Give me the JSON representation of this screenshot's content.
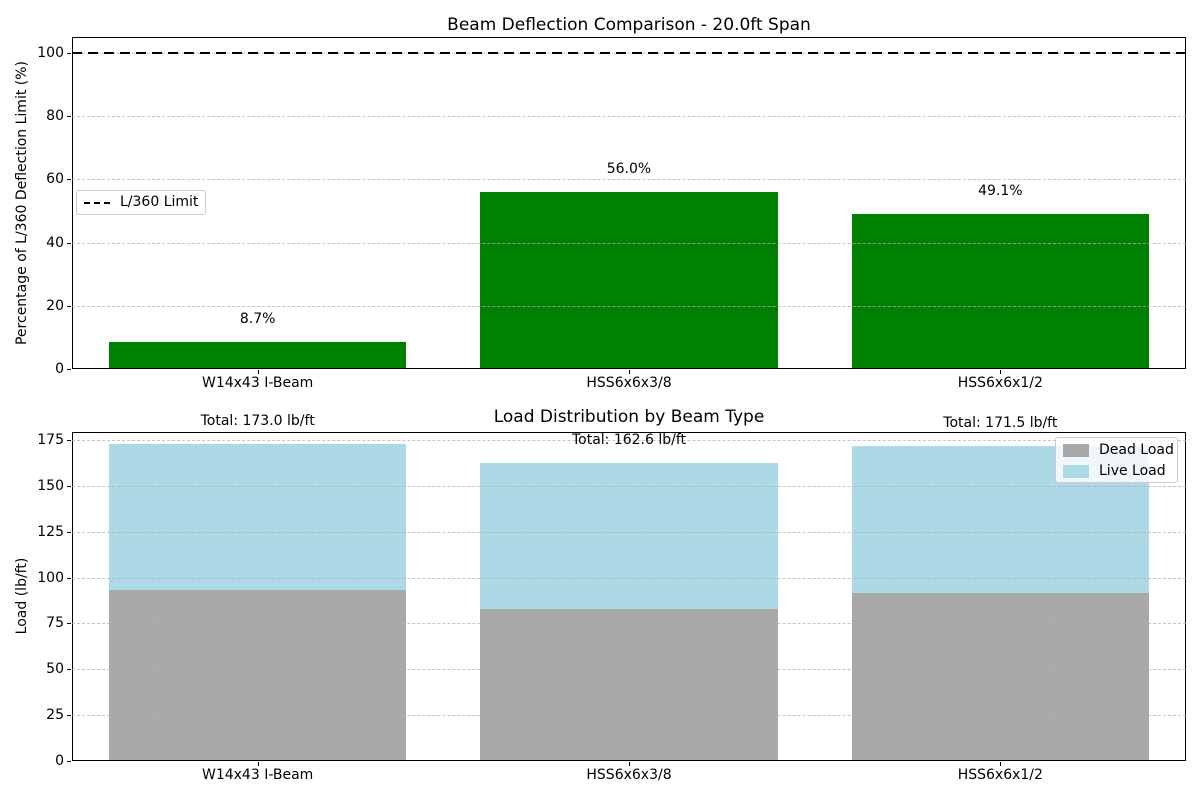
{
  "chart_data": [
    {
      "type": "bar",
      "title": "Beam Deflection Comparison - 20.0ft Span",
      "xlabel": "",
      "ylabel": "Percentage of L/360 Deflection Limit (%)",
      "categories": [
        "W14x43 I-Beam",
        "HSS6x6x3/8",
        "HSS6x6x1/2"
      ],
      "values": [
        8.7,
        56.0,
        49.1
      ],
      "bar_labels": [
        "8.7%",
        "56.0%",
        "49.1%"
      ],
      "bar_color": "#008000",
      "yticks": [
        0,
        20,
        40,
        60,
        80,
        100
      ],
      "ylim": [
        0,
        105
      ],
      "grid": "dashed-y",
      "reference_line": {
        "value": 100,
        "label": "L/360 Limit",
        "color": "#000000",
        "linestyle": "dashed"
      },
      "legend": {
        "position": "center-left",
        "entries": [
          {
            "label": "L/360 Limit",
            "swatch": "dashed-line",
            "color": "#000000"
          }
        ]
      }
    },
    {
      "type": "stacked-bar",
      "title": "Load Distribution by Beam Type",
      "xlabel": "",
      "ylabel": "Load (lb/ft)",
      "categories": [
        "W14x43 I-Beam",
        "HSS6x6x3/8",
        "HSS6x6x1/2"
      ],
      "series": [
        {
          "name": "Dead Load",
          "color": "#a9a9a9",
          "values": [
            93.0,
            82.6,
            91.5
          ]
        },
        {
          "name": "Live Load",
          "color": "#add8e6",
          "values": [
            80.0,
            80.0,
            80.0
          ]
        }
      ],
      "totals": [
        173.0,
        162.6,
        171.5
      ],
      "total_labels": [
        "Total: 173.0 lb/ft",
        "Total: 162.6 lb/ft",
        "Total: 171.5 lb/ft"
      ],
      "yticks": [
        0,
        25,
        50,
        75,
        100,
        125,
        150,
        175
      ],
      "ylim": [
        0,
        179
      ],
      "grid": "dashed-y",
      "legend": {
        "position": "upper-right",
        "entries": [
          {
            "label": "Dead Load",
            "swatch": "rect",
            "color": "#a9a9a9"
          },
          {
            "label": "Live Load",
            "swatch": "rect",
            "color": "#add8e6"
          }
        ]
      }
    }
  ]
}
